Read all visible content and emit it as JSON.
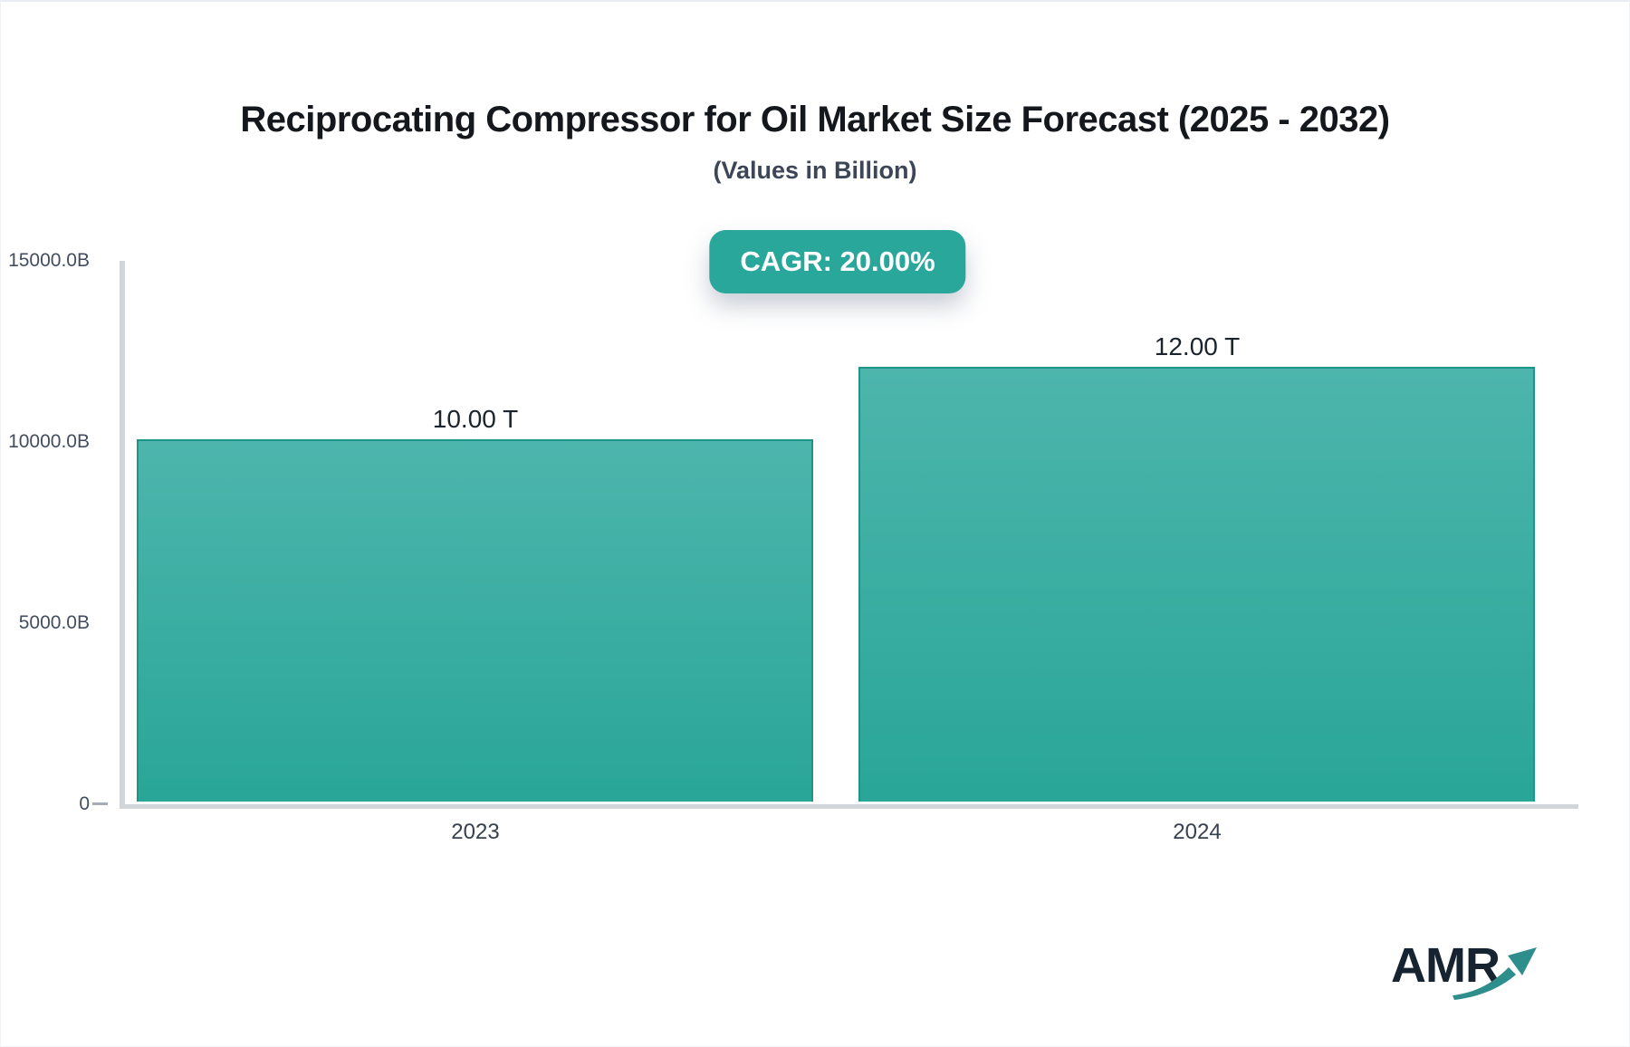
{
  "chart_data": {
    "type": "bar",
    "title": "Reciprocating Compressor for Oil Market Size Forecast (2025 - 2032)",
    "subtitle": "(Values in Billion)",
    "annotation": "CAGR: 20.00%",
    "categories": [
      "2023",
      "2024"
    ],
    "values": [
      10000,
      12000
    ],
    "value_labels": [
      "10.00 T",
      "12.00 T"
    ],
    "unit": "Billion",
    "ylim": [
      0,
      15000
    ],
    "ytick_values": [
      15000,
      10000,
      5000,
      0
    ],
    "ytick_labels": [
      "15000.0B",
      "10000.0B",
      "5000.0B",
      "0"
    ],
    "xlabel": "",
    "ylabel": "",
    "grid": false,
    "legend": "none",
    "bar_gradient_top": "#4db5ac",
    "bar_gradient_bottom": "#29a698",
    "bar_border_color": "#1f9488"
  },
  "badge": {
    "background": "#2aa79b",
    "text_color": "#ffffff"
  },
  "branding": {
    "logo_text": "AMR",
    "logo_color": "#152430",
    "arrow_color": "#2e8e8c",
    "arrow_icon": "growth-arrow-icon"
  },
  "colors": {
    "accent": "#2aa79b",
    "axis_line": "#d2d6db",
    "axis_text": "#424d5e",
    "title_text": "#14171c"
  }
}
